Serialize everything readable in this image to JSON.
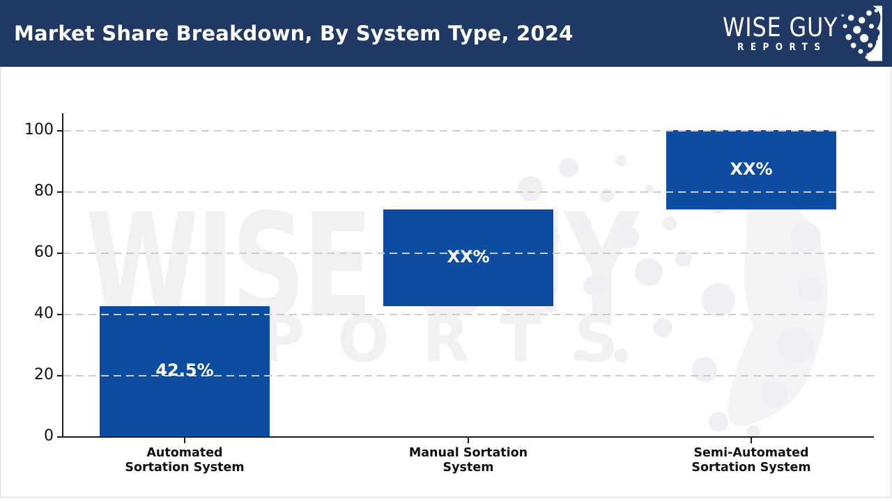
{
  "header": {
    "title": "Market Share Breakdown, By System Type, 2024",
    "bg_color": "#1f3864",
    "logo": {
      "line1": "WISE GUY",
      "line2": "REPORTS"
    }
  },
  "watermark": {
    "line1": "WISE GUY",
    "line2": "REPORTS"
  },
  "chart_data": {
    "type": "bar",
    "subtype": "waterfall",
    "title": "Market Share Breakdown, By System Type, 2024",
    "categories": [
      "Automated\nSortation System",
      "Manual Sortation\nSystem",
      "Semi-Automated\nSortation System"
    ],
    "series": [
      {
        "name": "Market Share",
        "bars": [
          {
            "category": "Automated Sortation System",
            "start": 0,
            "end": 42.5,
            "label": "42.5%"
          },
          {
            "category": "Manual Sortation System",
            "start": 42.5,
            "end": 74,
            "label": "XX%"
          },
          {
            "category": "Semi-Automated Sortation System",
            "start": 74,
            "end": 100,
            "label": "XX%"
          }
        ]
      }
    ],
    "ylim": [
      0,
      100
    ],
    "yticks": [
      0,
      20,
      40,
      60,
      80,
      100
    ],
    "grid": "horizontal-dashed",
    "legend": "none",
    "bar_color": "#0c4da2",
    "bar_label_color": "#ffffff",
    "axis_color": "#1a1a1a",
    "gridline_color": "#cdcdcd"
  }
}
